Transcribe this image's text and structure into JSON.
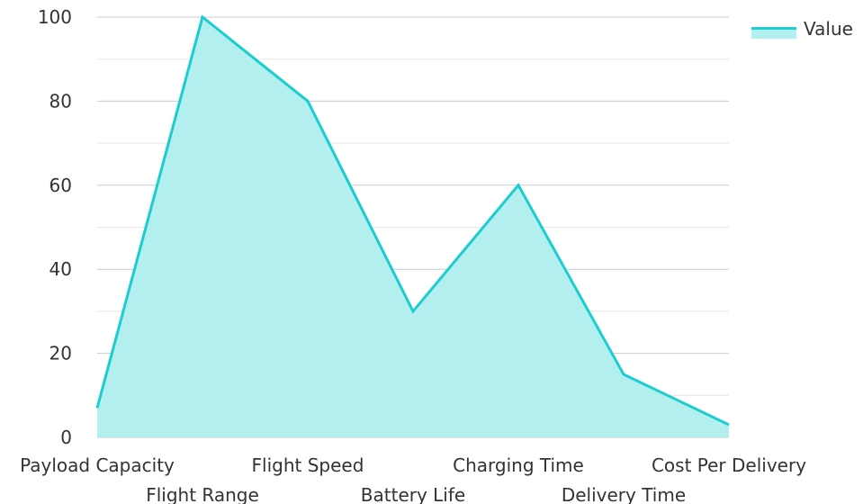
{
  "chart_data": {
    "type": "area",
    "categories": [
      "Payload Capacity",
      "Flight Range",
      "Flight Speed",
      "Battery Life",
      "Charging Time",
      "Delivery Time",
      "Cost Per Delivery"
    ],
    "series": [
      {
        "name": "Value",
        "values": [
          7,
          100,
          80,
          30,
          60,
          15,
          3
        ]
      }
    ],
    "ylim": [
      0,
      100
    ],
    "yticks": [
      0,
      20,
      40,
      60,
      80,
      100
    ],
    "grid": true,
    "legend": "top-right",
    "colors": {
      "line": "#1ccdd0",
      "fill": "#b3efee",
      "grid_major": "#cccccc",
      "grid_minor": "#e6e6e6"
    }
  }
}
